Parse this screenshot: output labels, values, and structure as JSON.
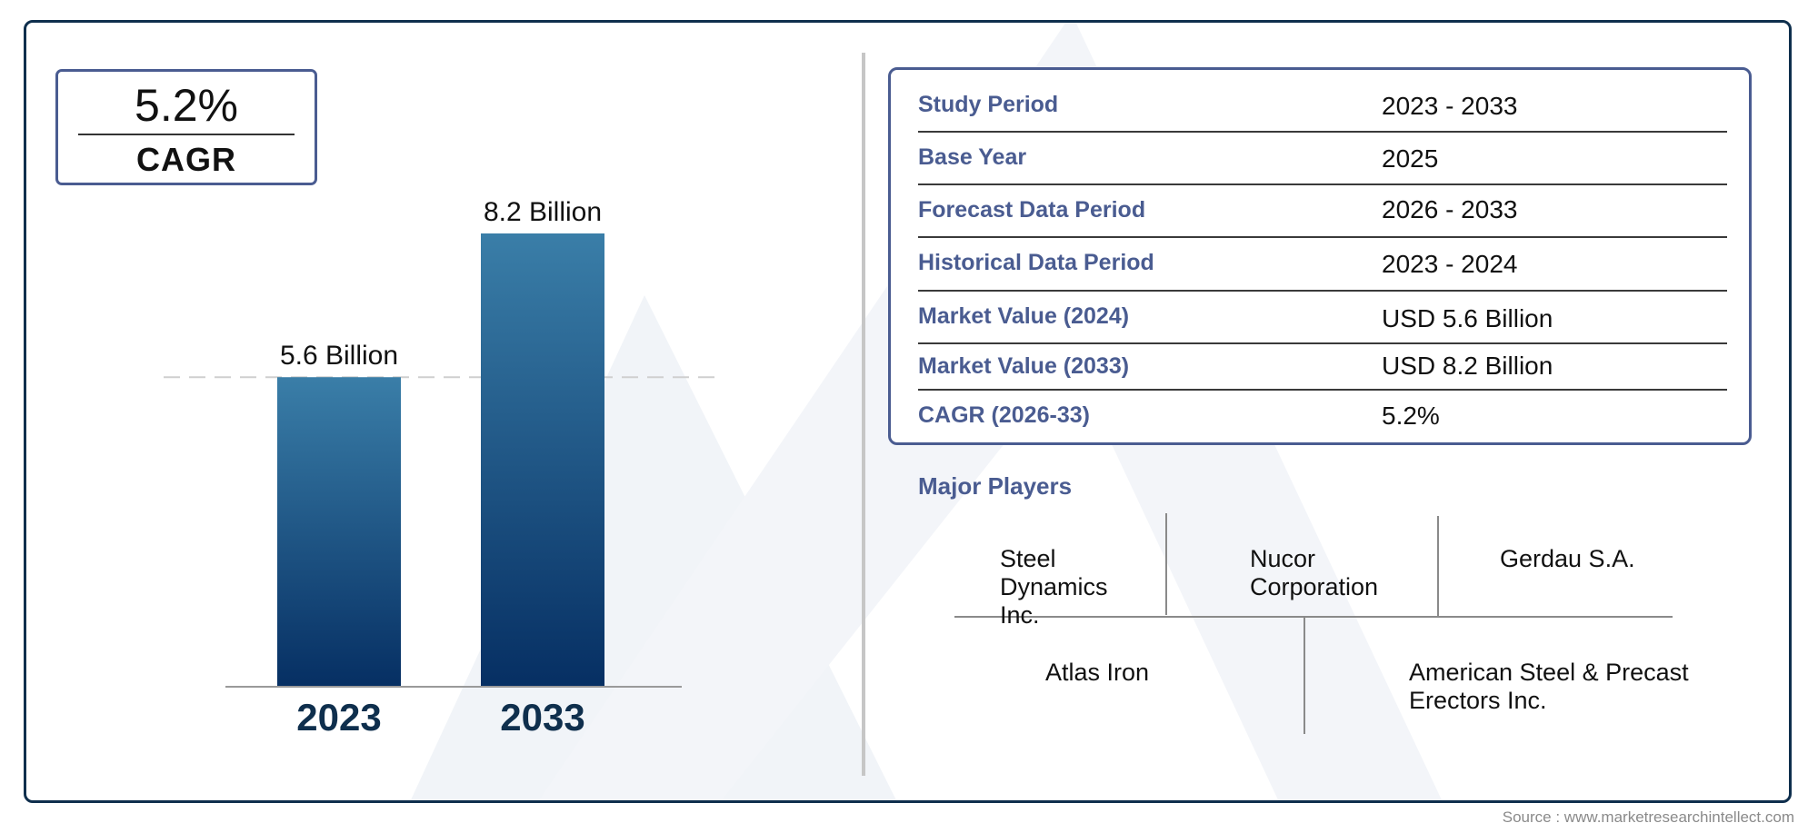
{
  "cagr_box": {
    "value": "5.2%",
    "label": "CAGR"
  },
  "chart_data": {
    "type": "bar",
    "categories": [
      "2023",
      "2033"
    ],
    "values": [
      5.6,
      8.2
    ],
    "data_labels": [
      "5.6 Billion",
      "8.2 Billion"
    ],
    "title": "",
    "xlabel": "",
    "ylabel": "",
    "ylim": [
      0,
      8.2
    ],
    "reference_line": 5.6,
    "grid": false,
    "bar_color_top": "#3a7ea8",
    "bar_color_bottom": "#062f63"
  },
  "info_table": [
    {
      "label": "Study Period",
      "value": "2023 - 2033"
    },
    {
      "label": "Base Year",
      "value": "2025"
    },
    {
      "label": "Forecast Data Period",
      "value": "2026 - 2033"
    },
    {
      "label": "Historical Data Period",
      "value": "2023 - 2024"
    },
    {
      "label": "Market Value (2024)",
      "value": "USD 5.6 Billion"
    },
    {
      "label": "Market Value (2033)",
      "value": "USD 8.2 Billion"
    },
    {
      "label": "CAGR (2026-33)",
      "value": "5.2%"
    }
  ],
  "players": {
    "title": "Major Players",
    "items": [
      "Steel Dynamics Inc.",
      "Nucor Corporation",
      "Gerdau S.A.",
      "Atlas Iron",
      "American Steel & Precast Erectors Inc."
    ]
  },
  "source": "Source : www.marketresearchintellect.com",
  "colors": {
    "accent": "#4a5c91",
    "frame": "#0f2f4d",
    "year_label": "#0f2f4d"
  }
}
